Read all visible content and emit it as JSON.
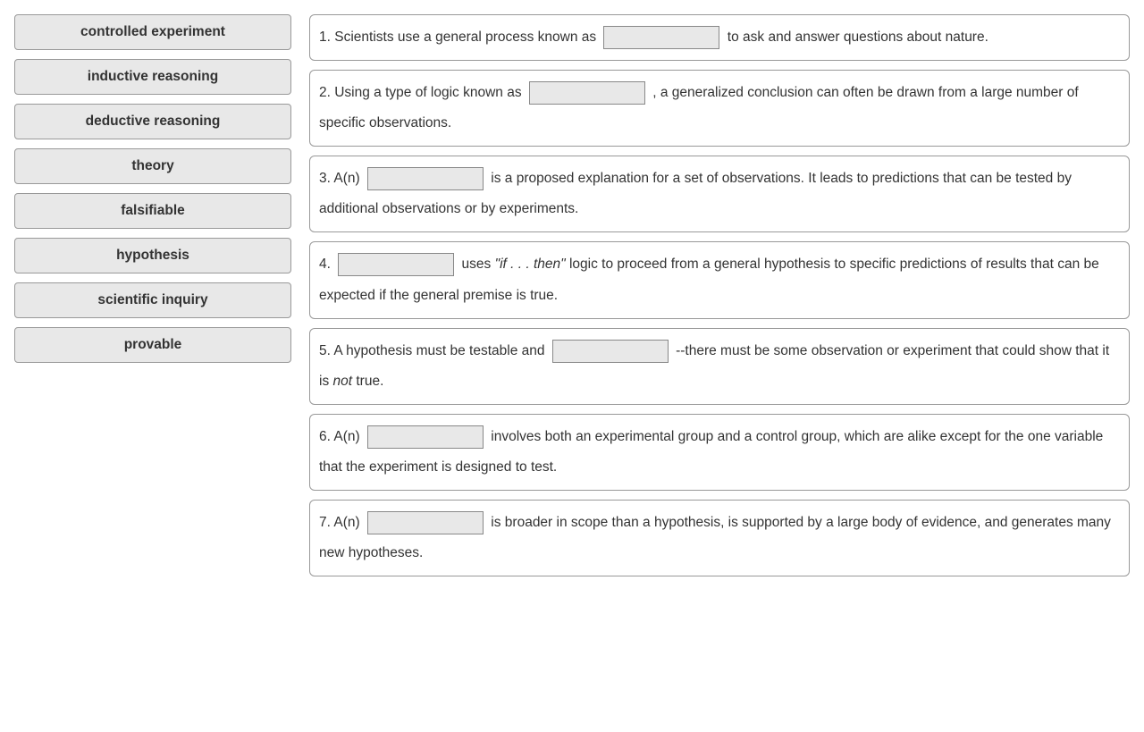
{
  "colors": {
    "card_bg": "#e8e8e8",
    "card_border": "#999999",
    "text": "#333333",
    "page_bg": "#ffffff",
    "blank_bg": "#e8e8e8",
    "blank_border": "#888888"
  },
  "terms": [
    "controlled experiment",
    "inductive reasoning",
    "deductive reasoning",
    "theory",
    "falsifiable",
    "hypothesis",
    "scientific inquiry",
    "provable"
  ],
  "questions": [
    {
      "num": "1.",
      "parts": [
        {
          "type": "text",
          "value": "Scientists use a general process known as "
        },
        {
          "type": "blank"
        },
        {
          "type": "text",
          "value": " to ask and answer questions about nature."
        }
      ]
    },
    {
      "num": "2.",
      "parts": [
        {
          "type": "text",
          "value": "Using a type of logic known as "
        },
        {
          "type": "blank"
        },
        {
          "type": "text",
          "value": " , a generalized conclusion can often be drawn from a large number of specific observations."
        }
      ]
    },
    {
      "num": "3.",
      "parts": [
        {
          "type": "text",
          "value": "A(n) "
        },
        {
          "type": "blank"
        },
        {
          "type": "text",
          "value": " is a proposed explanation for a set of observations. It leads to predictions that can be tested by additional observations or by experiments."
        }
      ]
    },
    {
      "num": "4.",
      "parts": [
        {
          "type": "blank"
        },
        {
          "type": "text",
          "value": " uses "
        },
        {
          "type": "italic",
          "value": "\"if . . . then\""
        },
        {
          "type": "text",
          "value": " logic to proceed from a general hypothesis to specific predictions of results that can be expected if the general premise is true."
        }
      ]
    },
    {
      "num": "5.",
      "parts": [
        {
          "type": "text",
          "value": "A hypothesis must be testable and "
        },
        {
          "type": "blank"
        },
        {
          "type": "text",
          "value": " --there must be some observation or experiment that could show that it is "
        },
        {
          "type": "italic",
          "value": "not"
        },
        {
          "type": "text",
          "value": " true."
        }
      ]
    },
    {
      "num": "6.",
      "parts": [
        {
          "type": "text",
          "value": "A(n) "
        },
        {
          "type": "blank"
        },
        {
          "type": "text",
          "value": " involves both an experimental group and a control group, which are alike except for the one variable that the experiment is designed to test."
        }
      ]
    },
    {
      "num": "7.",
      "parts": [
        {
          "type": "text",
          "value": "A(n) "
        },
        {
          "type": "blank"
        },
        {
          "type": "text",
          "value": " is broader in scope than a hypothesis, is supported by a large body of evidence, and generates many new hypotheses."
        }
      ]
    }
  ]
}
